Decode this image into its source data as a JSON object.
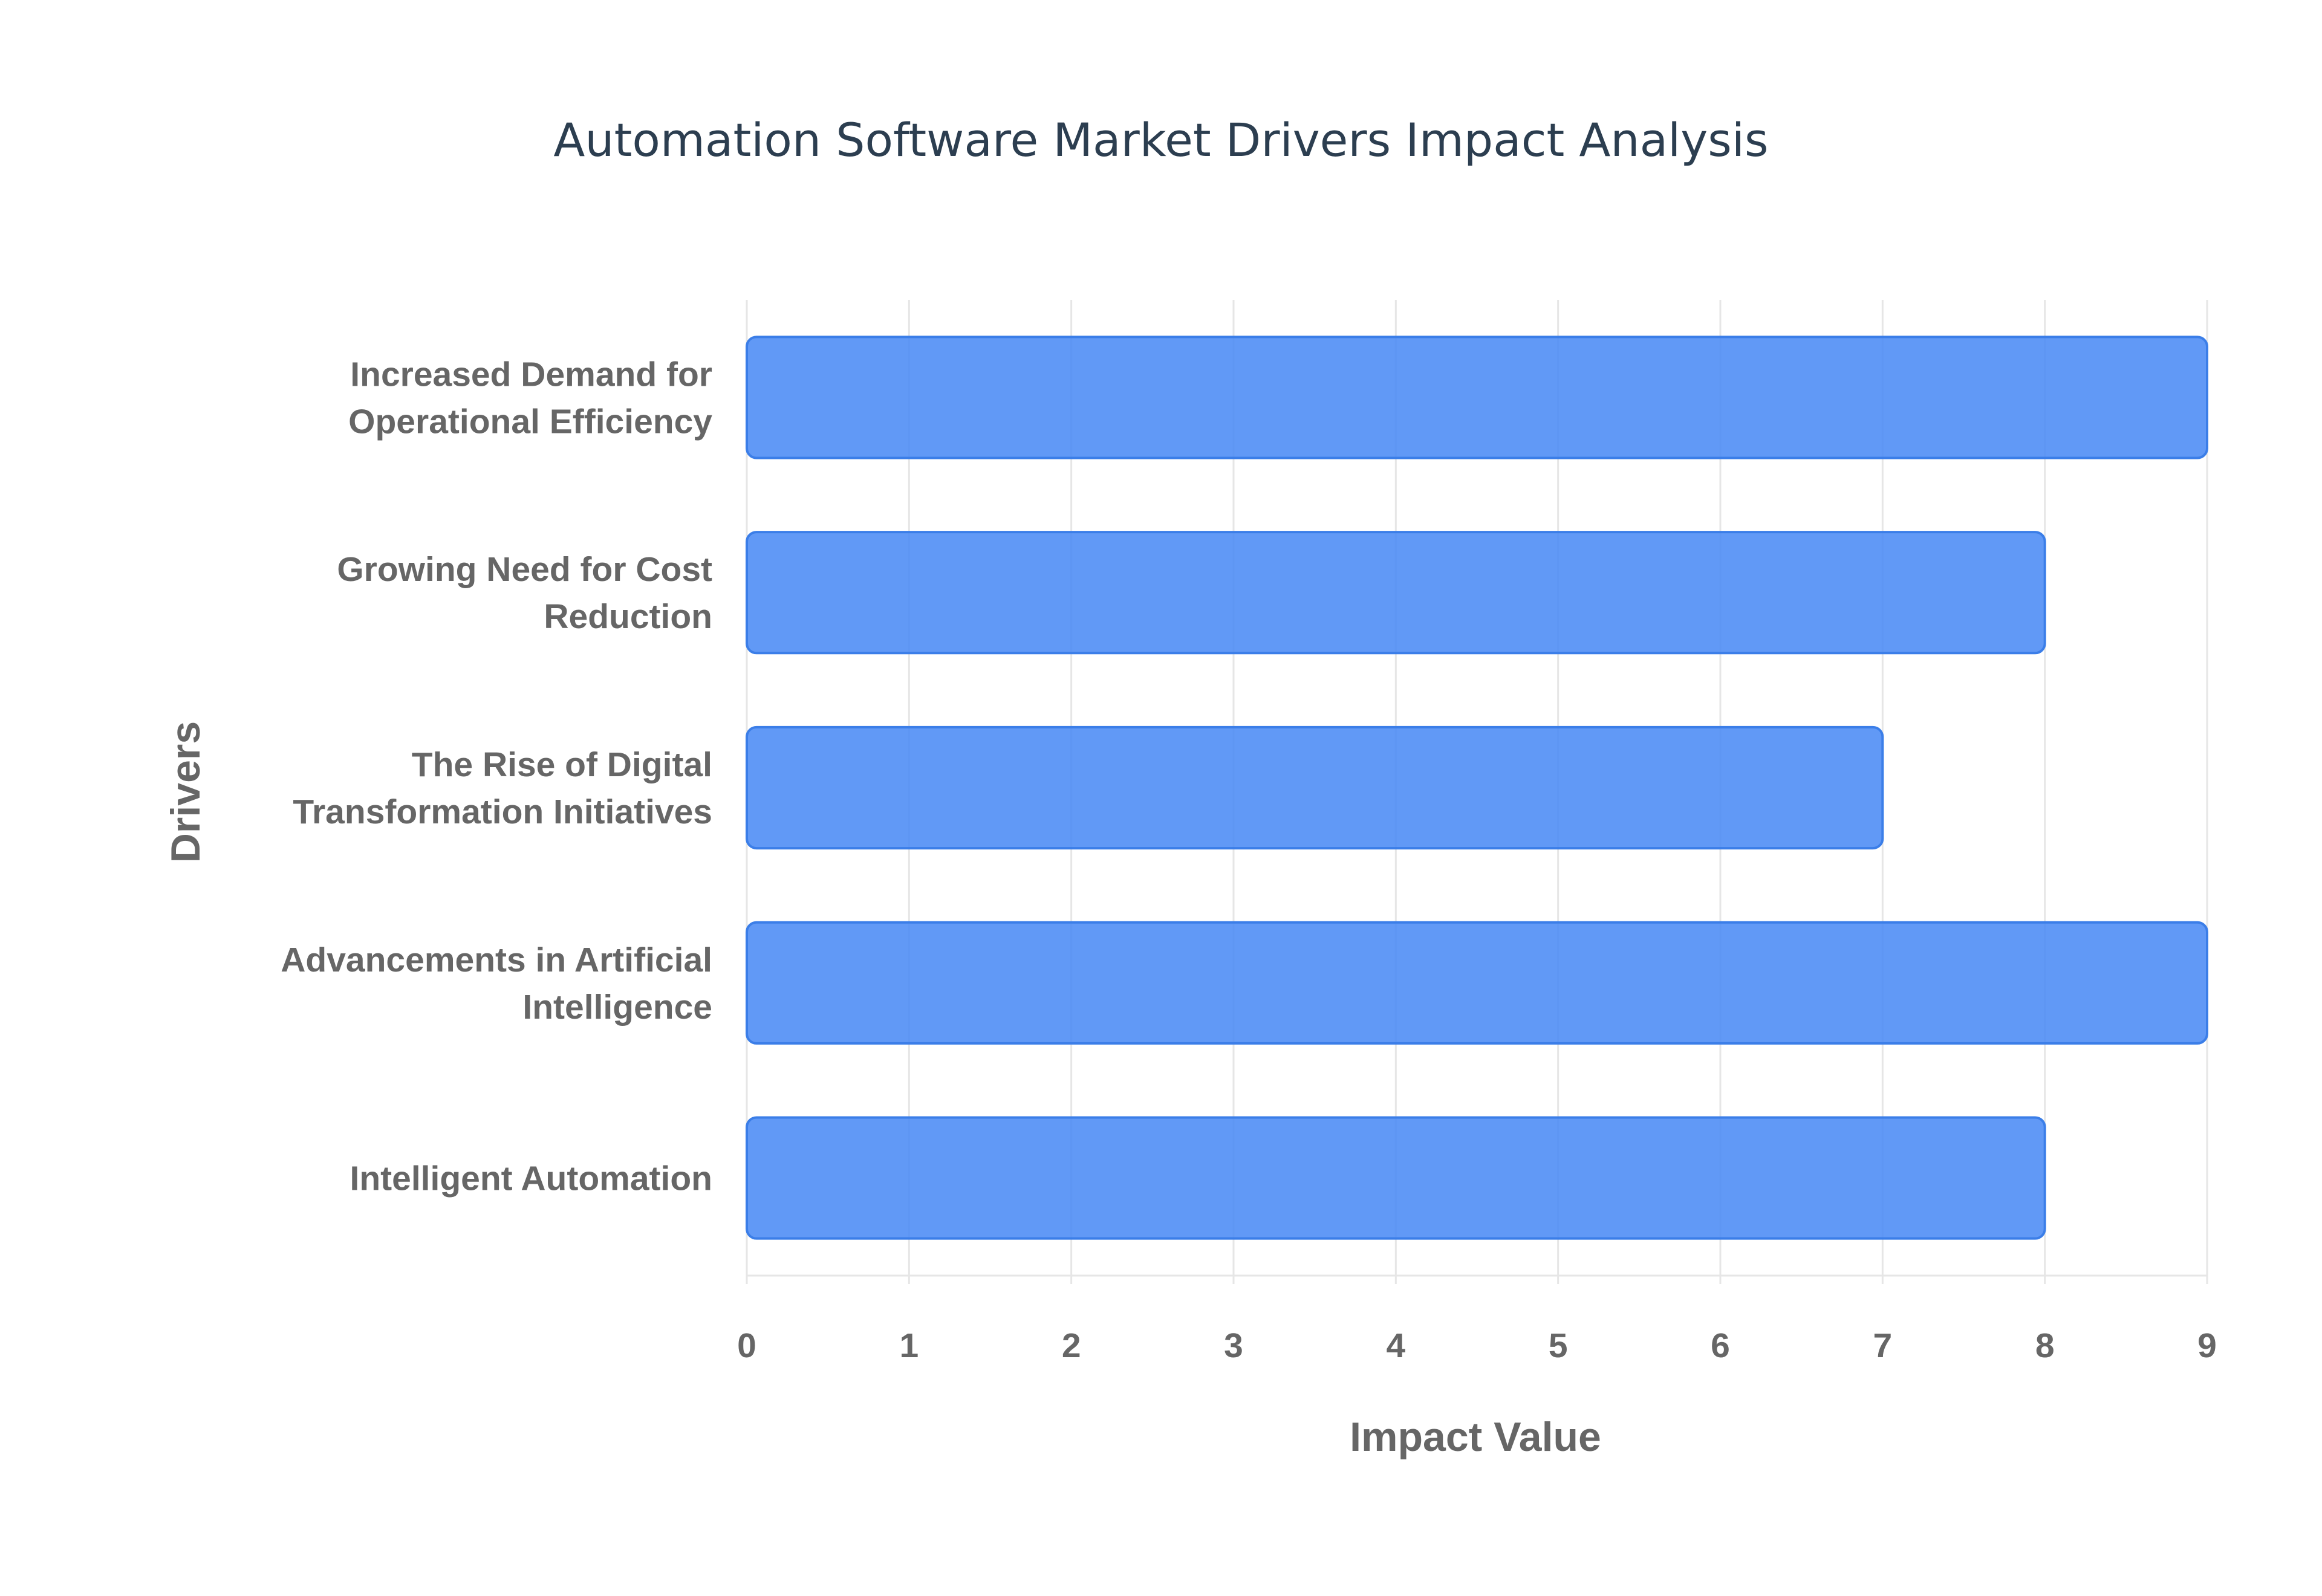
{
  "chart_data": {
    "type": "bar",
    "orientation": "horizontal",
    "title": "Automation Software Market Drivers Impact Analysis",
    "xlabel": "Impact Value",
    "ylabel": "Drivers",
    "categories": [
      [
        "Increased Demand for",
        "Operational Efficiency"
      ],
      [
        "Growing Need for Cost",
        "Reduction"
      ],
      [
        "The Rise of Digital",
        "Transformation Initiatives"
      ],
      [
        "Advancements in Artificial",
        "Intelligence"
      ],
      [
        "Intelligent Automation"
      ]
    ],
    "values": [
      9,
      8,
      7,
      9,
      8
    ],
    "xlim": [
      0,
      9
    ],
    "xticks": [
      "0",
      "1",
      "2",
      "3",
      "4",
      "5",
      "6",
      "7",
      "8",
      "9"
    ],
    "grid": true,
    "bar_color": "#4b8bf5"
  }
}
